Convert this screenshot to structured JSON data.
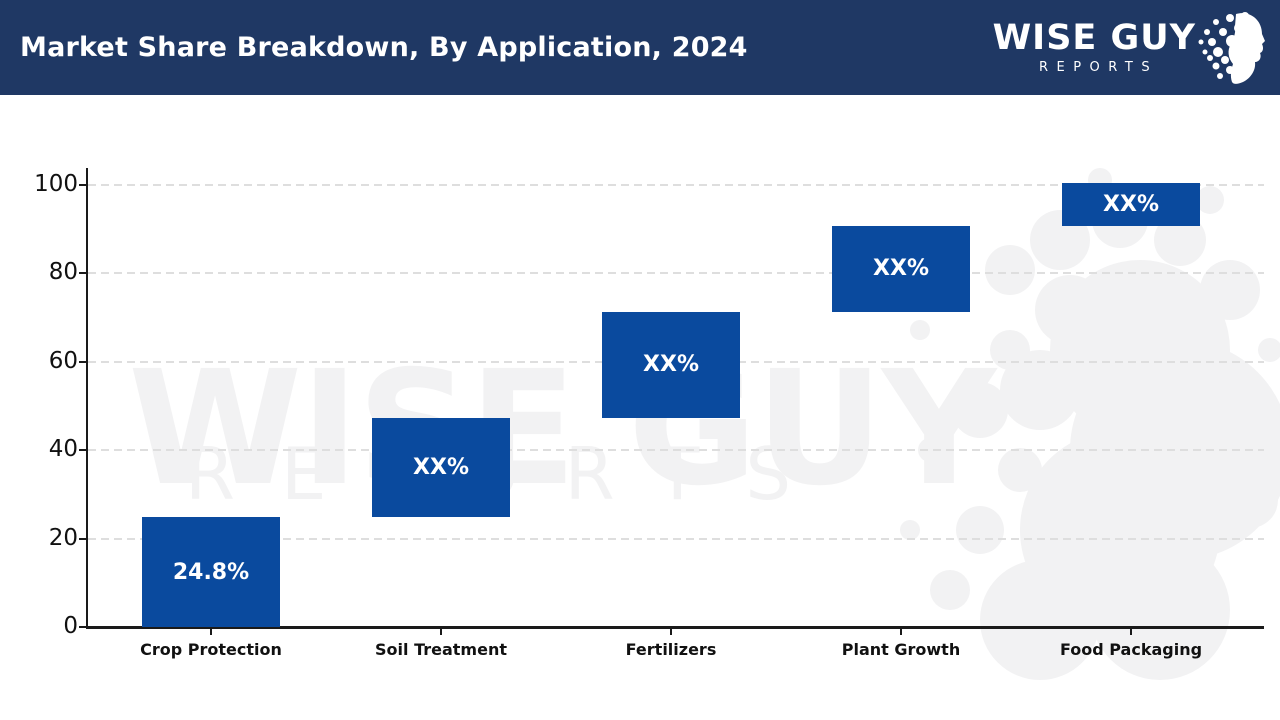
{
  "header": {
    "title": "Market Share Breakdown, By Application, 2024",
    "bg_color": "#1f3864",
    "text_color": "#ffffff",
    "logo": {
      "name": "WISE GUY",
      "sub": "REPORTS"
    }
  },
  "watermark": {
    "line1": "WISE GUY",
    "line2": "REPORTS"
  },
  "chart_data": {
    "type": "bar",
    "subtype": "waterfall-floating-bars",
    "title": "Market Share Breakdown, By Application, 2024",
    "categories": [
      "Crop Protection",
      "Soil Treatment",
      "Fertilizers",
      "Plant Growth",
      "Food Packaging"
    ],
    "segments": [
      [
        0,
        24.8
      ],
      [
        24.8,
        47.3
      ],
      [
        47.3,
        71.2
      ],
      [
        71.2,
        90.7
      ],
      [
        90.7,
        100.3
      ]
    ],
    "bar_labels": [
      "24.8%",
      "XX%",
      "XX%",
      "XX%",
      "XX%"
    ],
    "xlabel": "",
    "ylabel": "",
    "ylim": [
      0,
      105
    ],
    "yticks": [
      0,
      20,
      40,
      60,
      80,
      100
    ],
    "grid": "horizontal-dashed",
    "legend": "none",
    "bar_color": "#0a4a9e",
    "bar_label_color": "#ffffff",
    "axis_color": "#1a1a1a",
    "gridline_color": "#dedede"
  }
}
